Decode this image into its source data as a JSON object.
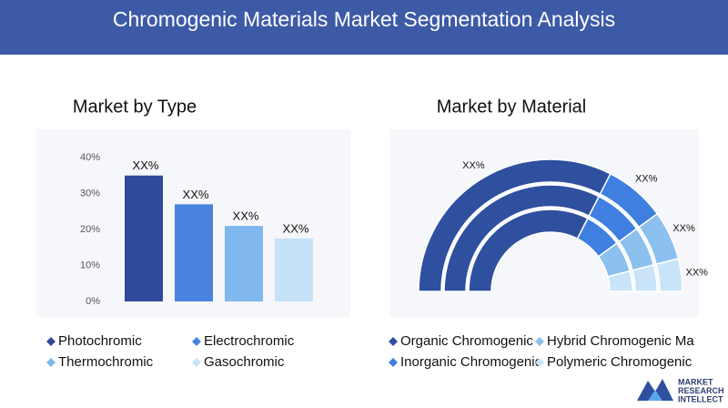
{
  "header": {
    "title": "Chromogenic Materials Market Segmentation Analysis"
  },
  "chart_data": [
    {
      "type": "bar",
      "title": "Market by Type",
      "categories": [
        "Photochromic",
        "Electrochromic",
        "Thermochromic",
        "Gasochromic"
      ],
      "values": [
        35,
        27,
        21,
        17.5
      ],
      "value_labels": [
        "XX%",
        "XX%",
        "XX%",
        "XX%"
      ],
      "colors": [
        "#2f4a9b",
        "#4a82e0",
        "#80b7ef",
        "#c6e2f8"
      ],
      "ylim": [
        0,
        40
      ],
      "yticks": [
        {
          "value": 0,
          "label": "0%"
        },
        {
          "value": 10,
          "label": "10%"
        },
        {
          "value": 20,
          "label": "20%"
        },
        {
          "value": 30,
          "label": "30%"
        },
        {
          "value": 40,
          "label": "40%"
        }
      ]
    },
    {
      "type": "pie",
      "title": "Market by Material",
      "categories": [
        "Organic Chromogenic",
        "Inorganic Chromogenic",
        "Hybrid Chromogenic Ma",
        "Polymeric Chromogenic"
      ],
      "values": [
        65,
        15,
        12,
        8
      ],
      "value_labels": [
        "XX%",
        "XX%",
        "XX%",
        "XX%"
      ],
      "colors": [
        "#2f4f9f",
        "#3e7fe0",
        "#8cc0ee",
        "#c9e4f8"
      ]
    }
  ],
  "logo": {
    "lines": [
      "MARKET",
      "RESEARCH",
      "INTELLECT"
    ]
  }
}
